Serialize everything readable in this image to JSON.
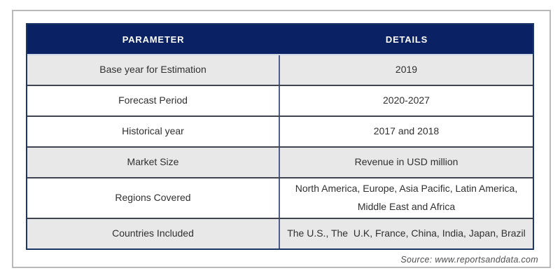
{
  "chart_data": {
    "type": "table",
    "title": "",
    "columns": [
      "PARAMETER",
      "DETAILS"
    ],
    "rows": [
      [
        "Base year for Estimation",
        "2019"
      ],
      [
        "Forecast Period",
        "2020-2027"
      ],
      [
        "Historical year",
        "2017 and 2018"
      ],
      [
        "Market Size",
        "Revenue in USD million"
      ],
      [
        "Regions Covered",
        "North America, Europe, Asia Pacific, Latin America, Middle East and Africa"
      ],
      [
        "Countries Included",
        "The U.S., The  U.K, France, China, India, Japan, Brazil"
      ]
    ]
  },
  "table": {
    "headers": [
      "PARAMETER",
      "DETAILS"
    ],
    "rows": [
      {
        "parameter": "Base year for Estimation",
        "details": "2019",
        "shaded": true
      },
      {
        "parameter": "Forecast Period",
        "details": "2020-2027",
        "shaded": false
      },
      {
        "parameter": "Historical year",
        "details": "2017 and 2018",
        "shaded": false
      },
      {
        "parameter": "Market Size",
        "details": "Revenue in USD million",
        "shaded": true
      },
      {
        "parameter": "Regions Covered",
        "details": "North America, Europe, Asia Pacific, Latin America, Middle East and Africa",
        "shaded": false
      },
      {
        "parameter": "Countries Included",
        "details": "The U.S., The  U.K, France, China, India, Japan, Brazil",
        "shaded": true
      }
    ]
  },
  "source": {
    "label": "Source: www.reportsanddata.com"
  },
  "colors": {
    "header_bg": "#0a2264",
    "header_text": "#ffffff",
    "shaded_row_bg": "#e8e8e8",
    "row_bg": "#ffffff",
    "row_text": "#303030",
    "table_border": "#1c3766",
    "frame_border": "#b9b9b9",
    "source_text": "#4f4f4f"
  }
}
